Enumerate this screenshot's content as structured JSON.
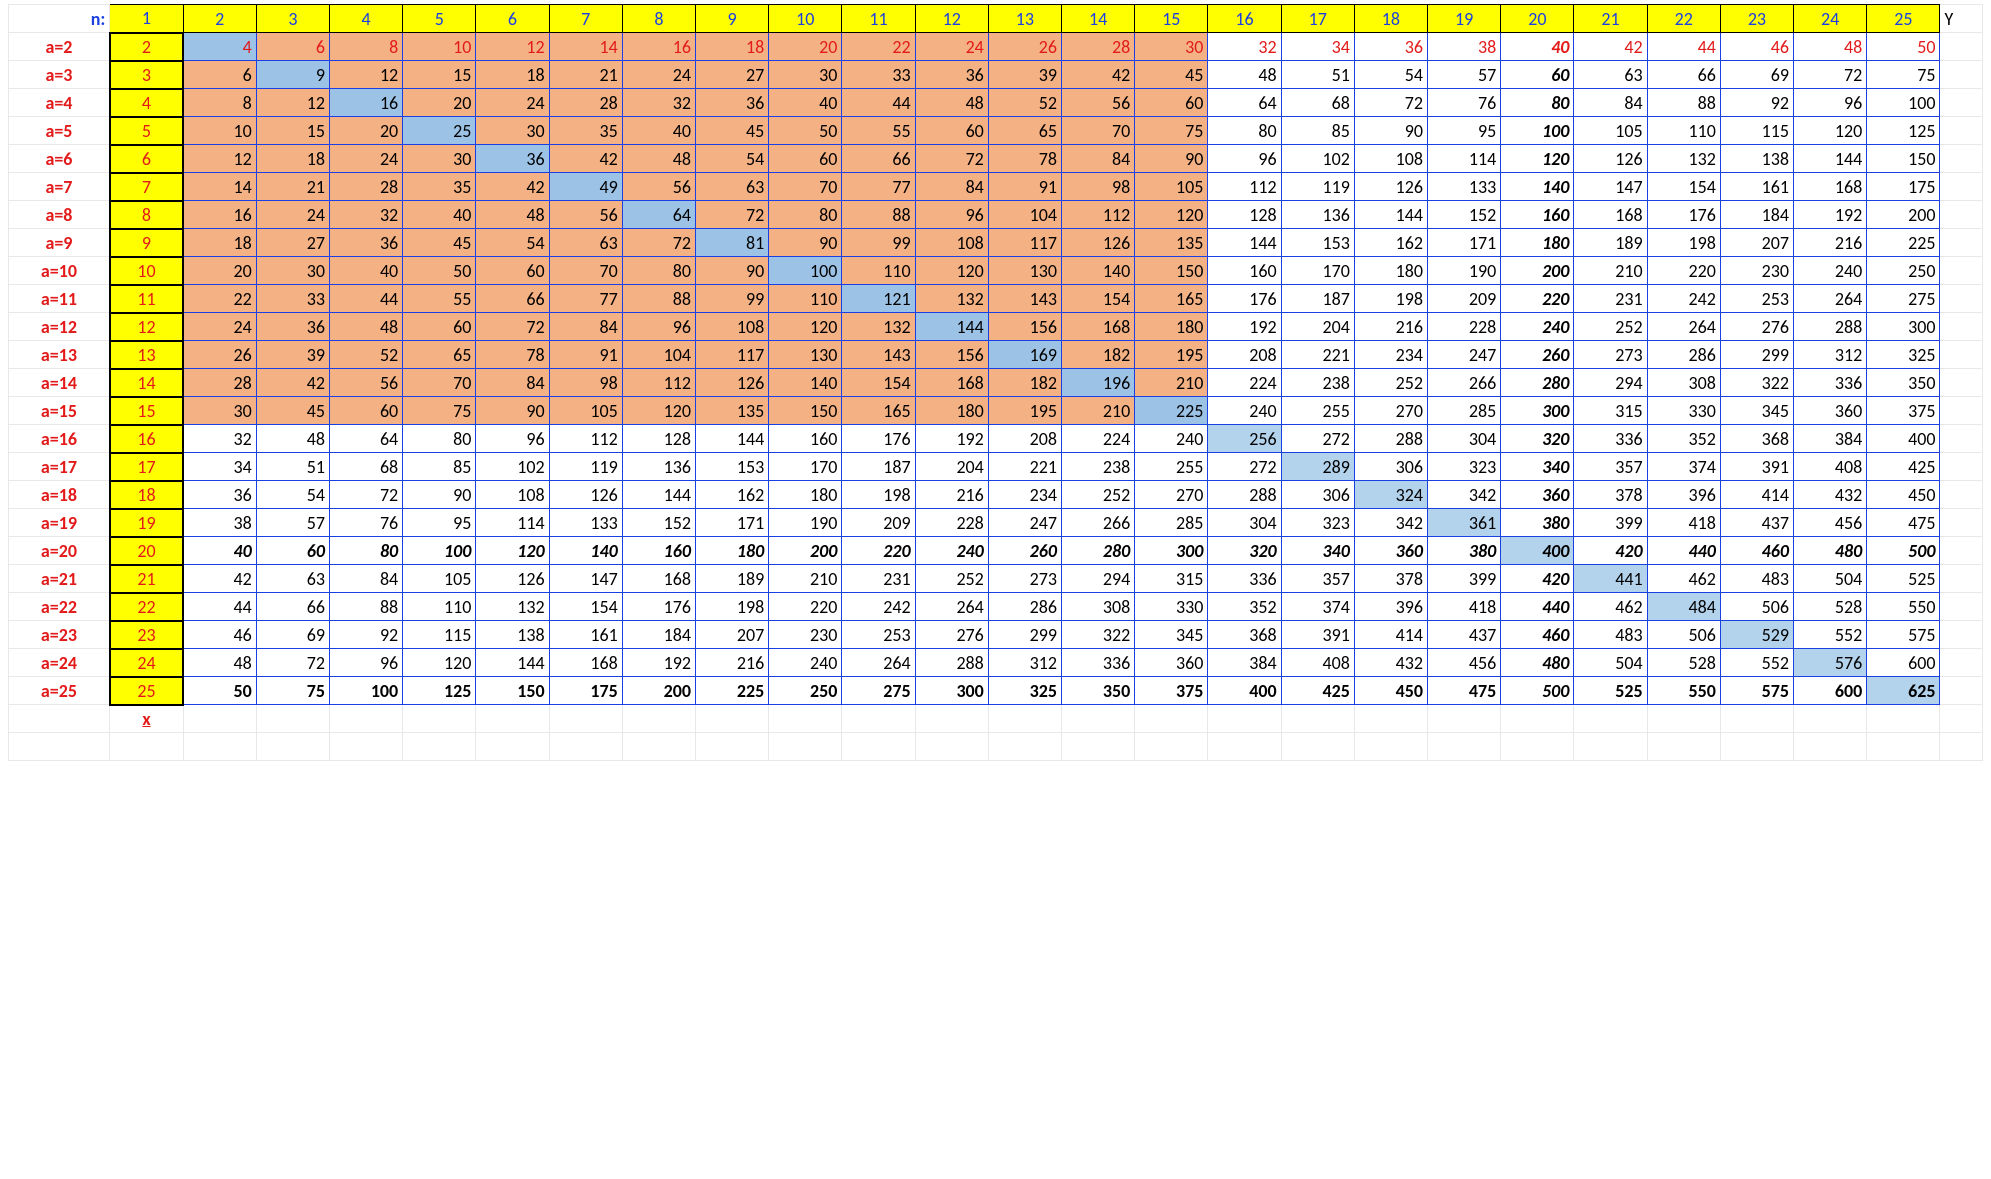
{
  "labels": {
    "n": "n:",
    "Y": "Y",
    "x": "x",
    "row_prefix": "a="
  },
  "n_start": 1,
  "n_end": 25,
  "a_start": 2,
  "a_end": 25,
  "orange_region_max_n": 15,
  "orange_region_max_a": 15,
  "red_text_row_a": 2,
  "bold_italic_col_n": 20,
  "bold_italic_row_a": 20,
  "bold_row_a": 25,
  "colors": {
    "yellow": "#ffff00",
    "orange": "#f4b183",
    "diag_blue": "#9cc3e6",
    "diag_blue_light": "#b3d2ec",
    "blue_border": "#1a3fe2",
    "red_text": "#e21a1a",
    "blue_text": "#1a3fe2",
    "grid": "#e8e8e8",
    "black": "#000000",
    "white": "#ffffff"
  },
  "cell_formula_note": "value = a * n  (row a, column n)"
}
